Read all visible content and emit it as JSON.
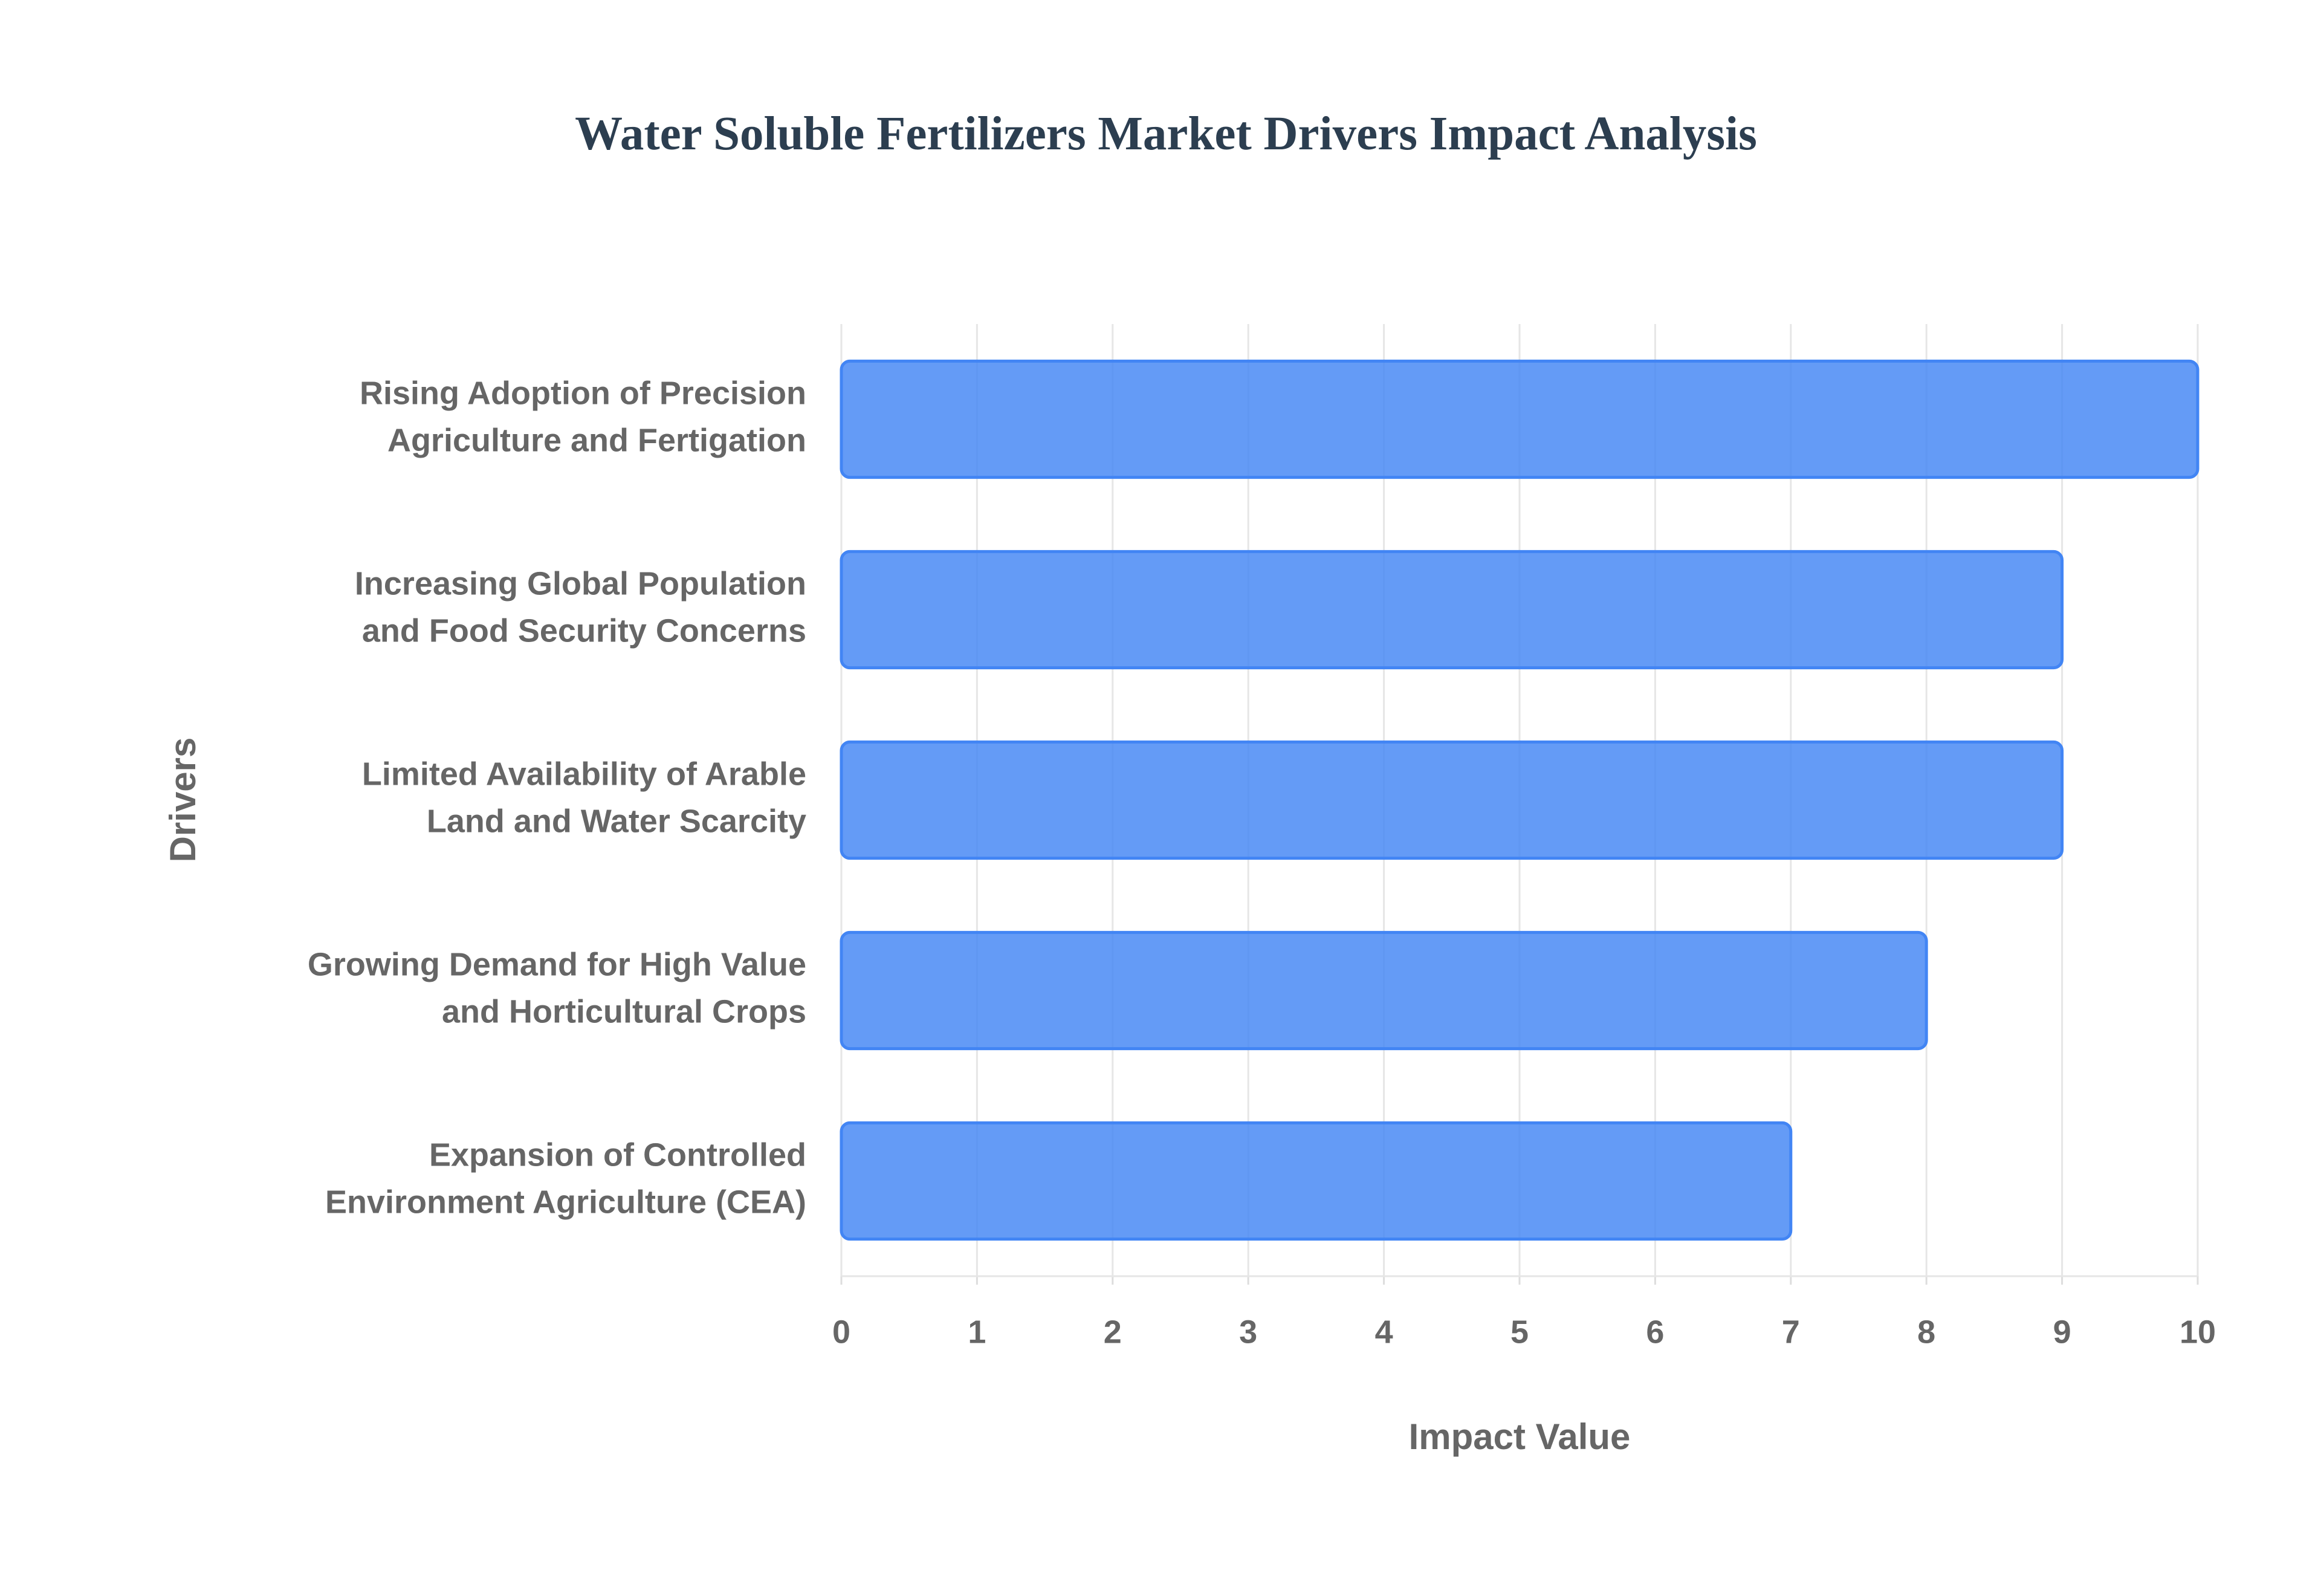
{
  "chart_data": {
    "type": "hbar",
    "title": "Water Soluble Fertilizers Market Drivers Impact Analysis",
    "x_label": "Impact Value",
    "y_label": "Drivers",
    "categories": [
      "Rising Adoption of Precision\nAgriculture and Fertigation",
      "Increasing Global Population\nand Food Security Concerns",
      "Limited Availability of Arable\nLand and Water Scarcity",
      "Growing Demand for High Value\nand Horticultural Crops",
      "Expansion of Controlled\nEnvironment Agriculture (CEA)"
    ],
    "values": [
      10,
      9,
      9,
      8,
      7
    ],
    "color": "#4285f4",
    "xlim": [
      0,
      10
    ],
    "xticks": [
      0,
      1,
      2,
      3,
      4,
      5,
      6,
      7,
      8,
      9,
      10
    ],
    "grid": true
  }
}
